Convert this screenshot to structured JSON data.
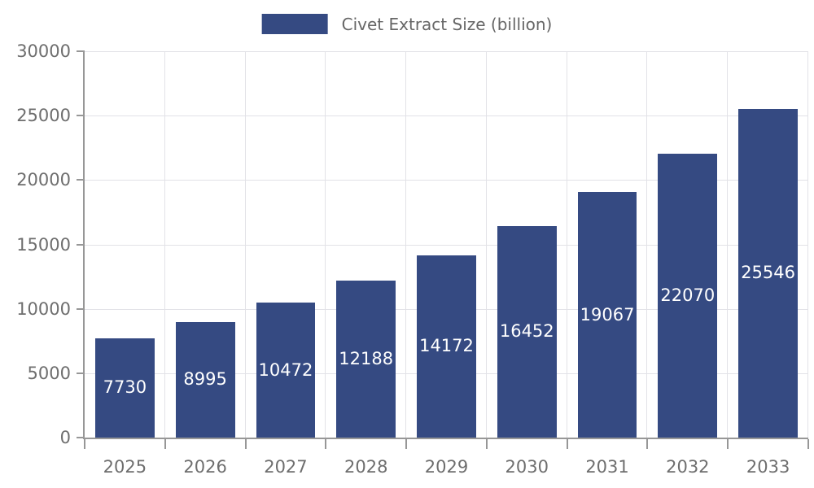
{
  "legend": {
    "label": "Civet Extract Size (billion)"
  },
  "chart_data": {
    "type": "bar",
    "title": "Civet Extract Size (billion)",
    "series_name": "Civet Extract Size (billion)",
    "categories": [
      "2025",
      "2026",
      "2027",
      "2028",
      "2029",
      "2030",
      "2031",
      "2032",
      "2033"
    ],
    "values": [
      7730,
      8995,
      10472,
      12188,
      14172,
      16452,
      19067,
      22070,
      25546
    ],
    "value_labels": [
      "7730",
      "8995",
      "10472",
      "12188",
      "14172",
      "16452",
      "19067",
      "22070",
      "25546"
    ],
    "xlabel": "",
    "ylabel": "",
    "ylim": [
      0,
      30000
    ],
    "yticks": [
      0,
      5000,
      10000,
      15000,
      20000,
      25000,
      30000
    ],
    "ytick_labels": [
      "0",
      "5000",
      "10000",
      "15000",
      "20000",
      "25000",
      "30000"
    ],
    "grid": true,
    "legend_position": "top-center",
    "value_label_position": "inside-center"
  },
  "colors": {
    "bar": "#354A82",
    "grid_line": "#E2E2E7",
    "axis_line": "#979797",
    "axis_text": "#6E6E6E",
    "legend_text": "#666666",
    "value_text": "#FFFFFF",
    "background": "#FFFFFF"
  }
}
